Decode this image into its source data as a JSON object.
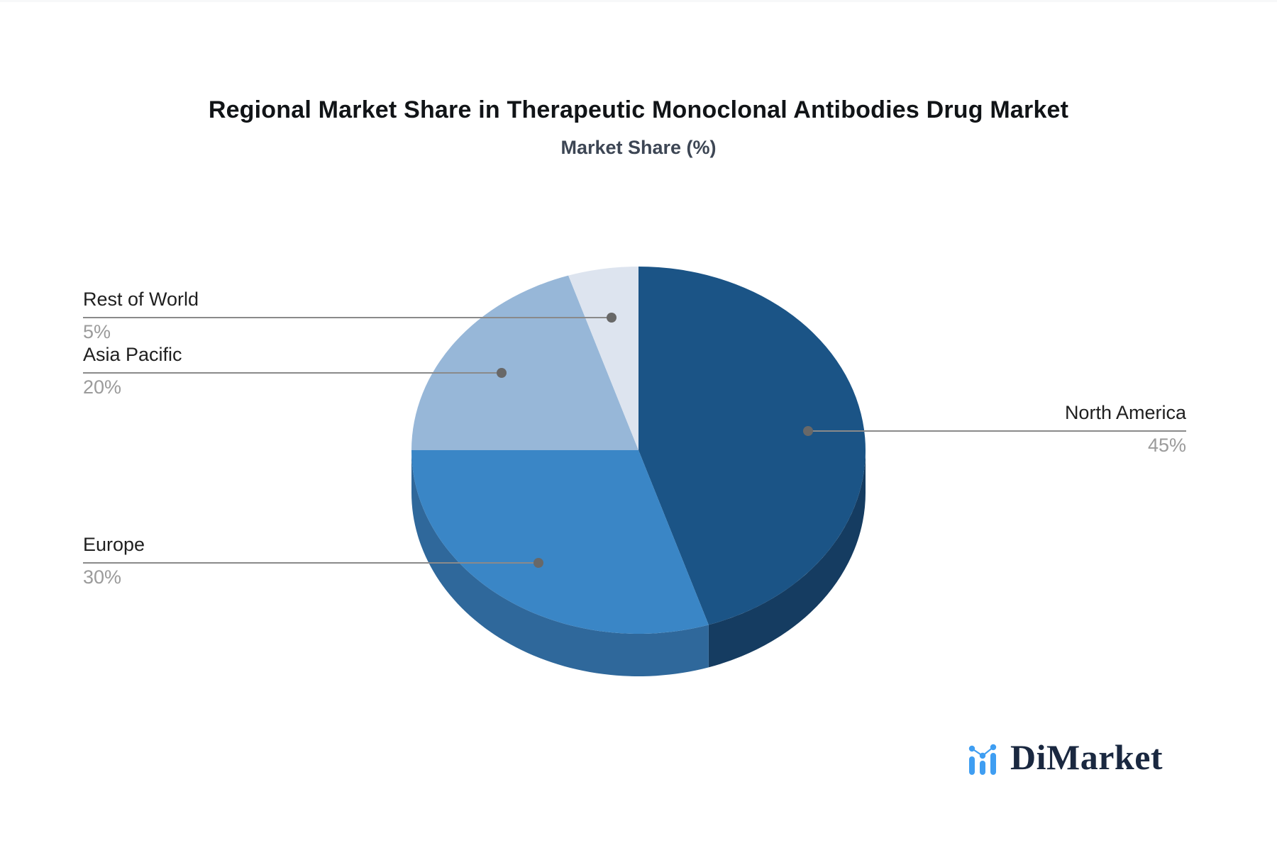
{
  "header": {
    "title": "Regional Market Share in Therapeutic Monoclonal Antibodies Drug Market",
    "subtitle": "Market Share (%)"
  },
  "logo": {
    "text": "DiMarket",
    "icon": "bar-chart-logo-icon",
    "icon_color": "#3f9ef2",
    "text_color": "#1a2840"
  },
  "colors": {
    "background": "#ffffff",
    "title_text": "#111417",
    "subtitle_text": "#3d4654",
    "label_name_text": "#1f1f1f",
    "label_value_text": "#9b9b9b",
    "leader_line": "#8a8a8a",
    "leader_dot": "#686868"
  },
  "chart_data": {
    "type": "pie",
    "style": "3d",
    "title": "Regional Market Share in Therapeutic Monoclonal Antibodies Drug Market",
    "subtitle": "Market Share (%)",
    "unit": "%",
    "start_angle_deg": 0,
    "direction": "clockwise",
    "legend": "none",
    "labels": "outside-with-leader-lines",
    "slices": [
      {
        "label": "North America",
        "value": 45,
        "pct": "45%",
        "color": "#1b5486",
        "side_color": "#153c61",
        "label_side": "right"
      },
      {
        "label": "Europe",
        "value": 30,
        "pct": "30%",
        "color": "#3a86c6",
        "side_color": "#2f689b",
        "label_side": "left"
      },
      {
        "label": "Asia Pacific",
        "value": 20,
        "pct": "20%",
        "color": "#97b7d8",
        "side_color": "#7da0c4",
        "label_side": "left"
      },
      {
        "label": "Rest of World",
        "value": 5,
        "pct": "5%",
        "color": "#dde4ef",
        "side_color": "#c2cddd",
        "label_side": "left"
      }
    ]
  }
}
